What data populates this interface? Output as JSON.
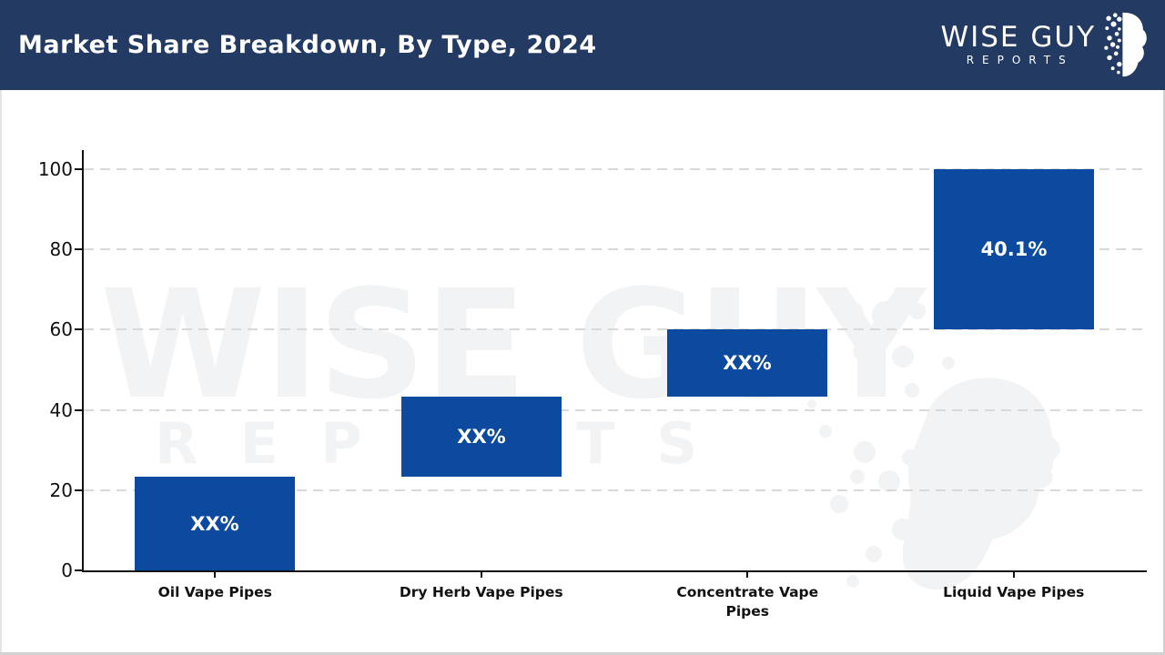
{
  "header": {
    "title": "Market Share Breakdown, By Type, 2024",
    "logo": {
      "wordmark": "WISE GUY",
      "sub": "REPORTS"
    }
  },
  "watermark": {
    "wordmark": "WISE GUY",
    "sub": "REPORTS"
  },
  "chart_data": {
    "type": "bar",
    "variant": "floating-waterfall",
    "title": "Market Share Breakdown, By Type, 2024",
    "categories": [
      "Oil Vape Pipes",
      "Dry Herb Vape Pipes",
      "Concentrate Vape Pipes",
      "Liquid Vape Pipes"
    ],
    "bars": [
      {
        "category": "Oil Vape Pipes",
        "from": 0,
        "to": 23.3,
        "label": "XX%"
      },
      {
        "category": "Dry Herb Vape Pipes",
        "from": 23.3,
        "to": 43.4,
        "label": "XX%"
      },
      {
        "category": "Concentrate Vape Pipes",
        "from": 43.4,
        "to": 60.0,
        "label": "XX%"
      },
      {
        "category": "Liquid Vape Pipes",
        "from": 60.0,
        "to": 100.1,
        "label": "40.1%"
      }
    ],
    "yticks": [
      0,
      20,
      40,
      60,
      80,
      100
    ],
    "ylim": [
      0,
      105
    ],
    "xlabel": "",
    "ylabel": "",
    "grid": "dashed-horizontal",
    "legend": "none",
    "colors": {
      "bar": "#0c4aa0",
      "bar_label_text": "#ffffff",
      "axis": "#111111",
      "gridline": "#d9d9d9",
      "header_bg": "#233a63",
      "watermark": "#f2f3f5"
    }
  }
}
